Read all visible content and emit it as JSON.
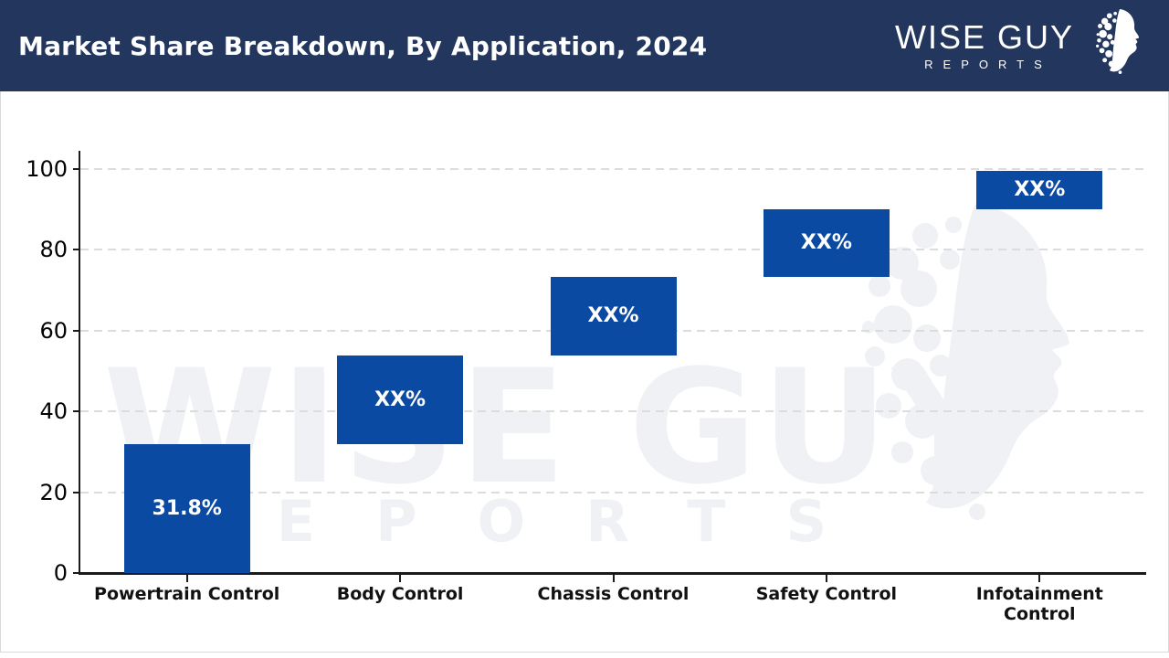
{
  "header": {
    "title": "Market Share Breakdown, By Application, 2024",
    "logo": {
      "name": "WISE GUY",
      "tagline": "REPORTS"
    }
  },
  "watermark": {
    "line1": "WISE GUY",
    "line2": "REPORTS"
  },
  "colors": {
    "header_bg": "#22365E",
    "bar": "#0B4AA2",
    "axis": "#1a1a1a",
    "grid": "#dcdcdc",
    "watermark": "#eff1f4"
  },
  "chart_data": {
    "type": "bar",
    "subtype": "waterfall",
    "title": "Market Share Breakdown, By Application, 2024",
    "xlabel": "",
    "ylabel": "",
    "ylim": [
      0,
      104.5
    ],
    "yticks": [
      0,
      20,
      40,
      60,
      80,
      100
    ],
    "grid": "horizontal-dashed",
    "legend": "none",
    "categories": [
      "Powertrain Control",
      "Body Control",
      "Chassis Control",
      "Safety Control",
      "Infotainment Control"
    ],
    "category_lines": [
      [
        "Powertrain Control"
      ],
      [
        "Body Control"
      ],
      [
        "Chassis Control"
      ],
      [
        "Safety Control"
      ],
      [
        "Infotainment",
        "Control"
      ]
    ],
    "segments": [
      {
        "category": "Powertrain Control",
        "start": 0,
        "end": 31.8,
        "label": "31.8%"
      },
      {
        "category": "Body Control",
        "start": 31.8,
        "end": 53.8,
        "label": "XX%"
      },
      {
        "category": "Chassis Control",
        "start": 53.8,
        "end": 73.4,
        "label": "XX%"
      },
      {
        "category": "Safety Control",
        "start": 73.4,
        "end": 90.1,
        "label": "XX%"
      },
      {
        "category": "Infotainment Control",
        "start": 90.1,
        "end": 99.6,
        "label": "XX%"
      }
    ]
  }
}
